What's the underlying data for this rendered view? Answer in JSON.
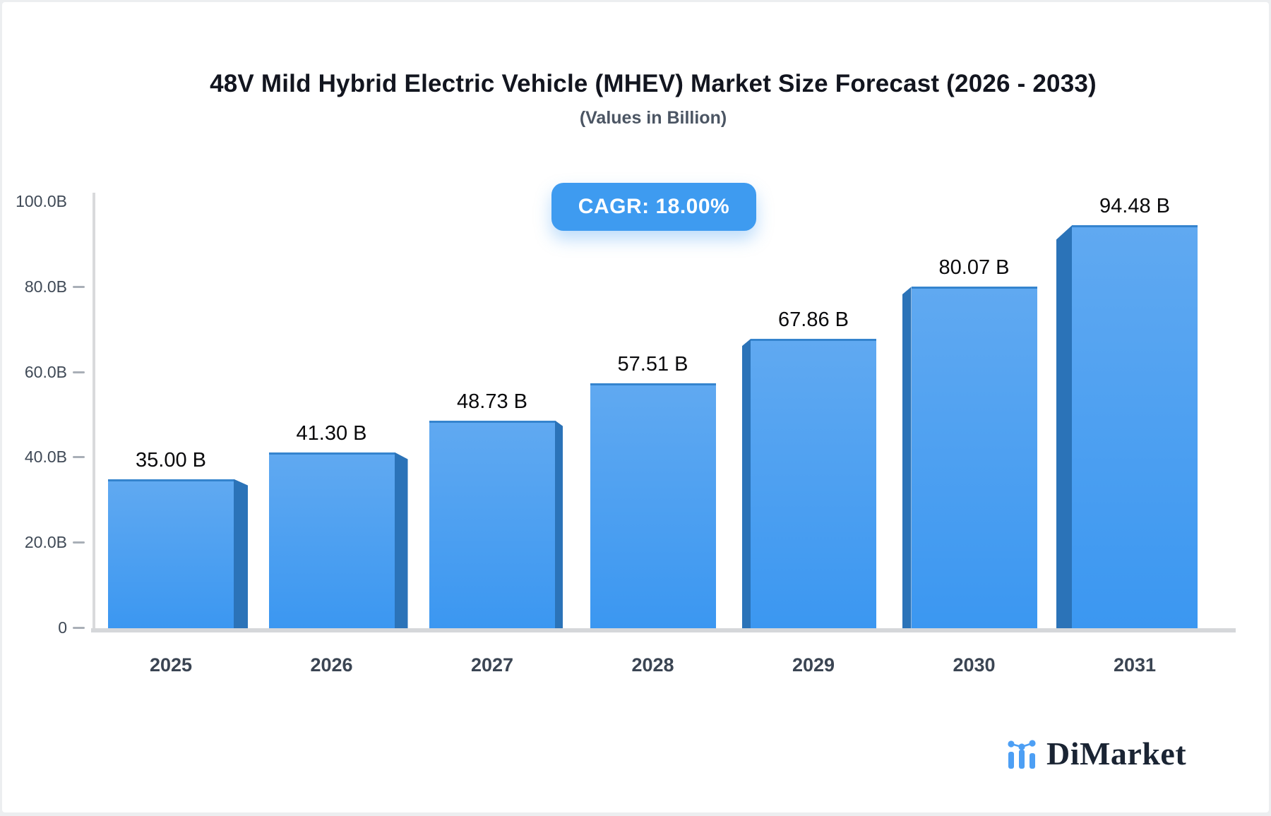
{
  "frame": {
    "background": "#eceef0",
    "card_background": "#ffffff"
  },
  "header": {
    "title": "48V Mild Hybrid Electric Vehicle (MHEV) Market Size Forecast (2026 - 2033)",
    "subtitle": "(Values in Billion)",
    "cagr_label": "CAGR: 18.00%",
    "badge_color": "#3e9bf0"
  },
  "chart_data": {
    "type": "bar",
    "title": "48V Mild Hybrid Electric Vehicle (MHEV) Market Size Forecast (2026 - 2033)",
    "subtitle": "(Values in Billion)",
    "cagr": "18.00%",
    "categories": [
      "2025",
      "2026",
      "2027",
      "2028",
      "2029",
      "2030",
      "2031"
    ],
    "values": [
      35.0,
      41.3,
      48.73,
      57.51,
      67.86,
      80.07,
      94.48
    ],
    "bar_labels": [
      "35.00 B",
      "41.30 B",
      "48.73 B",
      "57.51 B",
      "67.86 B",
      "80.07 B",
      "94.48 B"
    ],
    "xlabel": "",
    "ylabel": "",
    "ylim": [
      0,
      100
    ],
    "ytick_values": [
      100,
      80,
      60,
      40,
      20,
      0
    ],
    "ytick_labels": [
      "100.0B",
      "80.0B",
      "60.0B",
      "40.0B",
      "20.0B",
      "0"
    ],
    "grid": false,
    "legend": false,
    "bar_style": {
      "face_top_color": "#60a9f1",
      "face_bottom_color": "#3b97f1",
      "side_color": "#2b73b8",
      "top_edge_color": "#3584ce"
    }
  },
  "footer": {
    "brand": "DiMarket",
    "brand_color": "#1a2433",
    "icon_color": "#4d9ff4"
  }
}
